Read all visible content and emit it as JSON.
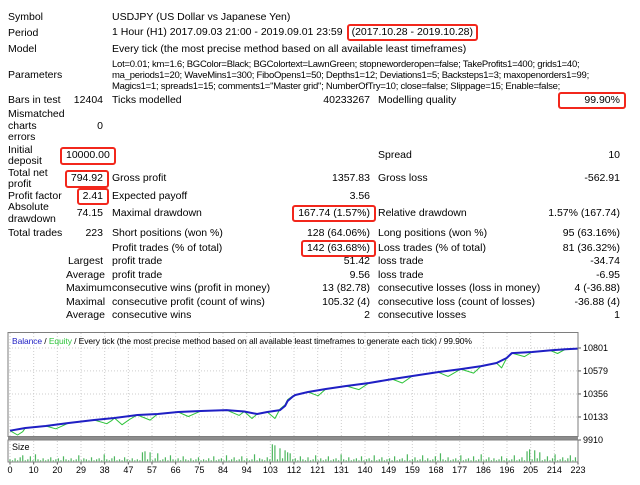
{
  "table": {
    "symbol": {
      "label": "Symbol",
      "value": "USDJPY (US Dollar vs Japanese Yen)"
    },
    "period": {
      "label": "Period",
      "value": "1 Hour (H1) 2017.09.03 21:00 - 2019.09.01 23:59",
      "highlight": "(2017.10.28 - 2019.10.28)"
    },
    "model": {
      "label": "Model",
      "value": "Every tick (the most precise method based on all available least timeframes)"
    },
    "parameters": {
      "label": "Parameters",
      "value": "Lot=0.01; km=1.6; BGColor=Black; BGColortext=LawnGreen; stopneworderopen=false; TakeProfits1=400; grids1=40; ma_periods1=20; WaveMins1=300; FiboOpens1=50; Depths1=12; Deviations1=5; Backsteps1=3; maxopenorders1=99; Magics1=1; spreads1=15; comments1=\"Master grid\"; NumberOfTry=10; close=false; Slippage=15; Enable=false;"
    },
    "bars": {
      "label": "Bars in test",
      "value": "12404",
      "label2": "Ticks modelled",
      "value2": "40233267",
      "label3": "Modelling quality",
      "value3": "99.90%"
    },
    "mismatched": {
      "label": "Mismatched charts errors",
      "value": "0"
    },
    "deposit": {
      "label": "Initial deposit",
      "value": "10000.00",
      "label3": "Spread",
      "value3": "10"
    },
    "netprofit": {
      "label": "Total net profit",
      "value": "794.92",
      "label2": "Gross profit",
      "value2": "1357.83",
      "label3": "Gross loss",
      "value3": "-562.91"
    },
    "pfactor": {
      "label": "Profit factor",
      "value": "2.41",
      "label2": "Expected payoff",
      "value2": "3.56"
    },
    "drawdown": {
      "label": "Absolute drawdown",
      "value": "74.15",
      "label2": "Maximal drawdown",
      "value2": "167.74 (1.57%)",
      "label3": "Relative drawdown",
      "value3": "1.57% (167.74)"
    },
    "trades": {
      "label": "Total trades",
      "value": "223",
      "label2": "Short positions (won %)",
      "value2": "128 (64.06%)",
      "label3": "Long positions (won %)",
      "value3": "95 (63.16%)"
    },
    "profittrades": {
      "label2": "Profit trades (% of total)",
      "value2": "142 (63.68%)",
      "label3": "Loss trades (% of total)",
      "value3": "81 (36.32%)"
    },
    "largest": {
      "label": "Largest",
      "label2": "profit trade",
      "value2": "51.42",
      "label3": "loss trade",
      "value3": "-34.74"
    },
    "average": {
      "label": "Average",
      "label2": "profit trade",
      "value2": "9.56",
      "label3": "loss trade",
      "value3": "-6.95"
    },
    "maximum": {
      "label": "Maximum",
      "label2": "consecutive wins (profit in money)",
      "value2": "13 (82.78)",
      "label3": "consecutive losses (loss in money)",
      "value3": "4 (-36.88)"
    },
    "maximal": {
      "label": "Maximal",
      "label2": "consecutive profit (count of wins)",
      "value2": "105.32 (4)",
      "label3": "consecutive loss (count of losses)",
      "value3": "-36.88 (4)"
    },
    "avgcons": {
      "label": "Average",
      "label2": "consecutive wins",
      "value2": "2",
      "label3": "consecutive losses",
      "value3": "1"
    }
  },
  "colors": {
    "annotation": "#f2271c",
    "balance": "#1f1fc4",
    "equity": "#2ec43a",
    "bars": "#4db65e",
    "grid": "#cdcdcd",
    "frame": "#7e7e7e",
    "separator": "#8c8c8c"
  },
  "chart_data": {
    "type": "line",
    "legend": [
      {
        "text": "Balance",
        "color": "#1f1fc4"
      },
      {
        "text": " / ",
        "color": "#000000"
      },
      {
        "text": "Equity",
        "color": "#2ec43a"
      },
      {
        "text": " / Every tick (the most precise method based on all available least timeframes to generate each tick) / 99.90%",
        "color": "#000000"
      }
    ],
    "ylabel": "",
    "xlabel": "",
    "y_ticks": [
      10801,
      10579,
      10356,
      10133,
      9910
    ],
    "x_ticks": [
      "0",
      "10",
      "20",
      "29",
      "38",
      "47",
      "57",
      "66",
      "75",
      "84",
      "94",
      "103",
      "112",
      "121",
      "131",
      "140",
      "149",
      "159",
      "168",
      "177",
      "186",
      "196",
      "205",
      "214",
      "223"
    ],
    "x_range": [
      0,
      223
    ],
    "y_range": [
      9910,
      10801
    ],
    "grid": true,
    "series": [
      {
        "name": "Balance",
        "color": "#1f1fc4",
        "width": 2,
        "points": [
          [
            0,
            10000
          ],
          [
            6,
            10026
          ],
          [
            14,
            10046
          ],
          [
            23,
            10075
          ],
          [
            33,
            10104
          ],
          [
            41,
            10123
          ],
          [
            50,
            10152
          ],
          [
            58,
            10162
          ],
          [
            66,
            10181
          ],
          [
            75,
            10191
          ],
          [
            85,
            10200
          ],
          [
            92,
            10186
          ],
          [
            97,
            10162
          ],
          [
            101,
            10181
          ],
          [
            106,
            10200
          ],
          [
            108,
            10240
          ],
          [
            109,
            10288
          ],
          [
            111,
            10330
          ],
          [
            112,
            10346
          ],
          [
            117,
            10375
          ],
          [
            124,
            10404
          ],
          [
            132,
            10433
          ],
          [
            141,
            10462
          ],
          [
            150,
            10500
          ],
          [
            158,
            10530
          ],
          [
            168,
            10568
          ],
          [
            177,
            10597
          ],
          [
            185,
            10626
          ],
          [
            191,
            10656
          ],
          [
            195,
            10704
          ],
          [
            197,
            10752
          ],
          [
            205,
            10762
          ],
          [
            212,
            10778
          ],
          [
            218,
            10788
          ],
          [
            223,
            10795
          ]
        ]
      },
      {
        "name": "Equity",
        "color": "#2ec43a",
        "width": 1,
        "points": [
          [
            0,
            10000
          ],
          [
            3,
            9958
          ],
          [
            5,
            9990
          ],
          [
            6,
            10026
          ],
          [
            14,
            10046
          ],
          [
            18,
            10018
          ],
          [
            20,
            10040
          ],
          [
            23,
            10075
          ],
          [
            33,
            10104
          ],
          [
            38,
            10068
          ],
          [
            40,
            10100
          ],
          [
            41,
            10123
          ],
          [
            44,
            10058
          ],
          [
            47,
            10110
          ],
          [
            50,
            10152
          ],
          [
            55,
            10103
          ],
          [
            58,
            10162
          ],
          [
            66,
            10181
          ],
          [
            70,
            10138
          ],
          [
            73,
            10170
          ],
          [
            75,
            10191
          ],
          [
            85,
            10200
          ],
          [
            90,
            10148
          ],
          [
            92,
            10186
          ],
          [
            95,
            10118
          ],
          [
            97,
            10162
          ],
          [
            101,
            10181
          ],
          [
            104,
            10118
          ],
          [
            106,
            10210
          ],
          [
            108,
            10252
          ],
          [
            109,
            10300
          ],
          [
            111,
            10336
          ],
          [
            112,
            10346
          ],
          [
            117,
            10375
          ],
          [
            121,
            10338
          ],
          [
            124,
            10404
          ],
          [
            132,
            10433
          ],
          [
            137,
            10398
          ],
          [
            141,
            10462
          ],
          [
            150,
            10500
          ],
          [
            154,
            10462
          ],
          [
            158,
            10530
          ],
          [
            168,
            10568
          ],
          [
            172,
            10526
          ],
          [
            177,
            10597
          ],
          [
            182,
            10558
          ],
          [
            185,
            10626
          ],
          [
            191,
            10656
          ],
          [
            193,
            10608
          ],
          [
            195,
            10704
          ],
          [
            197,
            10752
          ],
          [
            202,
            10718
          ],
          [
            205,
            10762
          ],
          [
            212,
            10778
          ],
          [
            215,
            10748
          ],
          [
            218,
            10788
          ],
          [
            223,
            10795
          ]
        ]
      }
    ],
    "size_panel": {
      "label": "Size",
      "bar_color": "#4db65e",
      "values": [
        2,
        1,
        3,
        1,
        4,
        6,
        1,
        2,
        5,
        1,
        7,
        2,
        1,
        3,
        1,
        2,
        4,
        1,
        2,
        3,
        1,
        5,
        2,
        1,
        3,
        1,
        2,
        6,
        1,
        3,
        2,
        1,
        4,
        1,
        2,
        3,
        1,
        7,
        2,
        1,
        3,
        5,
        1,
        2,
        1,
        4,
        2,
        1,
        3,
        1,
        2,
        1,
        9,
        10,
        2,
        9,
        1,
        3,
        8,
        1,
        2,
        4,
        1,
        6,
        2,
        1,
        3,
        1,
        5,
        2,
        1,
        3,
        1,
        2,
        4,
        1,
        2,
        1,
        3,
        1,
        5,
        1,
        2,
        3,
        1,
        6,
        1,
        2,
        4,
        1,
        2,
        5,
        1,
        3,
        1,
        2,
        7,
        1,
        3,
        2,
        1,
        4,
        2,
        17,
        16,
        2,
        13,
        3,
        11,
        9,
        8,
        2,
        3,
        1,
        5,
        2,
        1,
        4,
        1,
        2,
        6,
        1,
        3,
        1,
        2,
        5,
        1,
        2,
        3,
        1,
        7,
        2,
        1,
        4,
        1,
        2,
        3,
        1,
        5,
        1,
        2,
        3,
        1,
        6,
        1,
        2,
        4,
        1,
        2,
        3,
        1,
        5,
        1,
        2,
        3,
        1,
        7,
        1,
        2,
        4,
        1,
        2,
        6,
        1,
        3,
        1,
        2,
        5,
        1,
        8,
        2,
        1,
        4,
        1,
        2,
        3,
        1,
        6,
        1,
        2,
        3,
        1,
        5,
        1,
        2,
        7,
        1,
        2,
        4,
        1,
        3,
        1,
        2,
        5,
        1,
        3,
        1,
        2,
        6,
        1,
        2,
        4,
        1,
        10,
        12,
        2,
        11,
        3,
        9,
        1,
        2,
        5,
        1,
        3,
        7,
        1,
        2,
        4,
        1,
        3,
        6,
        1,
        4
      ]
    }
  }
}
